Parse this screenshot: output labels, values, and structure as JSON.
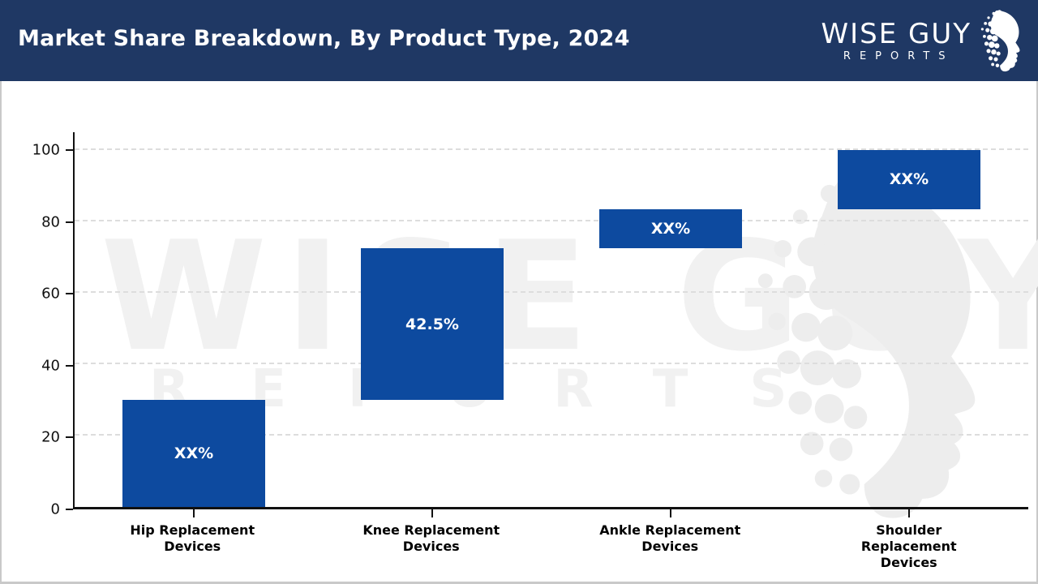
{
  "page": {
    "background": "#ffffff",
    "frame_border_color": "#c9c9c9"
  },
  "header": {
    "background": "#1f3864",
    "title": "Market Share Breakdown, By Product Type, 2024",
    "logo_line1": "WISE GUY",
    "logo_line2": "REPORTS"
  },
  "watermark": {
    "line1": "WISE GUY",
    "line2": "REPORTS"
  },
  "chart_data": {
    "type": "bar",
    "subtype": "waterfall",
    "title": "Market Share Breakdown, By Product Type, 2024",
    "xlabel": "",
    "ylabel": "",
    "categories": [
      "Hip Replacement\nDevices",
      "Knee Replacement\nDevices",
      "Ankle Replacement\nDevices",
      "Shoulder\nReplacement\nDevices"
    ],
    "segments": [
      {
        "category": "Hip Replacement Devices",
        "label": "XX%",
        "start": 0,
        "end": 30
      },
      {
        "category": "Knee Replacement Devices",
        "label": "42.5%",
        "start": 30,
        "end": 72.5
      },
      {
        "category": "Ankle Replacement Devices",
        "label": "XX%",
        "start": 72.5,
        "end": 83.5
      },
      {
        "category": "Shoulder Replacement Devices",
        "label": "XX%",
        "start": 83.5,
        "end": 100
      }
    ],
    "yticks": [
      0,
      20,
      40,
      60,
      80,
      100
    ],
    "ylim": [
      0,
      105
    ],
    "grid": true,
    "grid_style": "dashed",
    "legend": false,
    "bar_color": "#0d4a9f",
    "bar_label_color": "#ffffff",
    "bar_width_pct": 15
  }
}
